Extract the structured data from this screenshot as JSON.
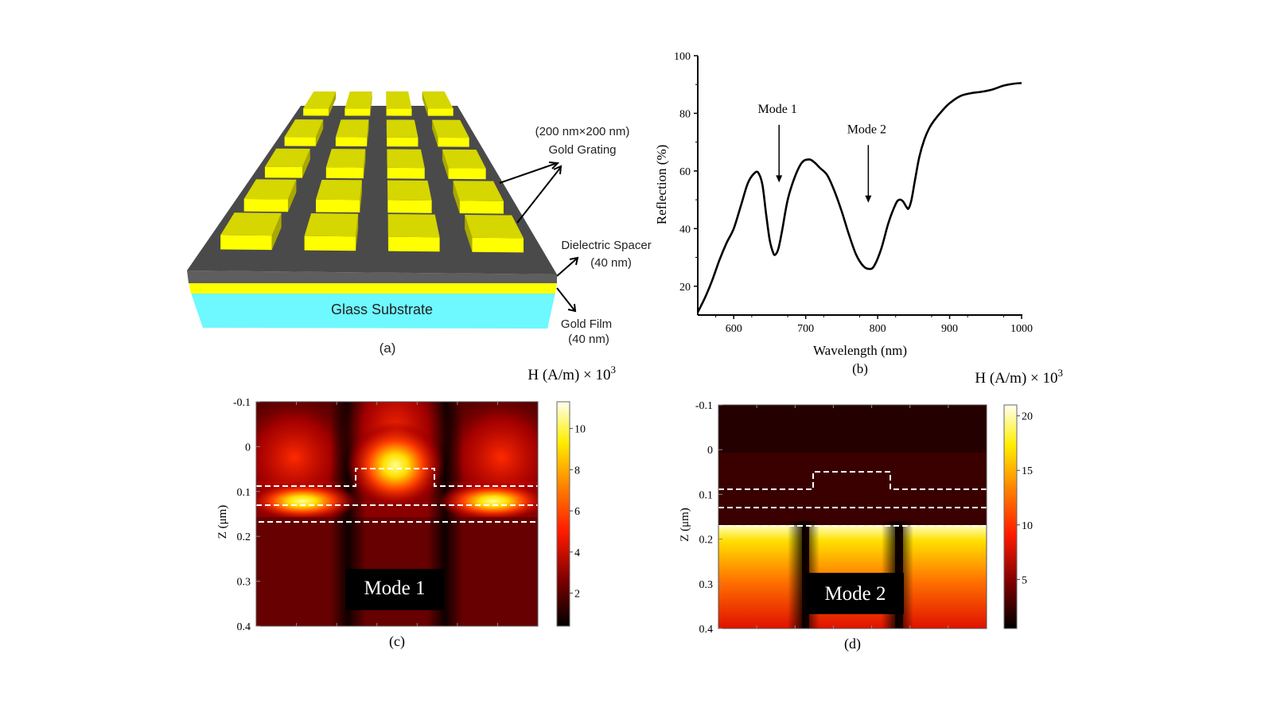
{
  "panel_a": {
    "caption": "(a)",
    "label_grating_size": "(200 nm×200 nm)",
    "label_grating": "Gold Grating",
    "label_spacer": "Dielectric Spacer",
    "label_spacer_thickness": "(40 nm)",
    "label_film": "Gold Film",
    "label_film_thickness": "(40 nm)",
    "label_substrate": "Glass Substrate",
    "colors": {
      "gold_top": "#d6d600",
      "gold_front": "#ffff00",
      "spacer": "#4a4a4a",
      "spacer_edge": "#5e5e5e",
      "glass": "#6ef8ff"
    }
  },
  "chart_data": [
    {
      "panel": "b",
      "type": "line",
      "caption": "(b)",
      "xlabel": "Wavelength (nm)",
      "ylabel": "Reflection (%)",
      "xlim": [
        550,
        1000
      ],
      "ylim": [
        10,
        100
      ],
      "xticks": [
        "600",
        "700",
        "800",
        "900",
        "1000"
      ],
      "yticks": [
        "20",
        "40",
        "60",
        "80",
        "100"
      ],
      "grid": false,
      "series": [
        {
          "x": [
            550,
            560,
            570,
            580,
            590,
            600,
            610,
            620,
            630,
            635,
            640,
            645,
            650,
            655,
            658,
            662,
            667,
            675,
            685,
            695,
            705,
            712,
            720,
            730,
            740,
            750,
            760,
            770,
            780,
            788,
            795,
            805,
            815,
            825,
            830,
            835,
            840,
            843,
            847,
            852,
            858,
            865,
            872,
            880,
            890,
            900,
            915,
            930,
            945,
            960,
            975,
            990,
            1000
          ],
          "y": [
            11,
            16,
            22,
            29,
            35,
            40,
            48,
            56,
            59.5,
            59,
            55,
            45,
            36,
            31.5,
            31,
            33,
            39,
            50,
            58,
            63,
            64,
            63,
            61,
            58.5,
            53,
            46,
            38,
            31,
            27,
            26,
            27,
            33,
            42,
            48.5,
            50,
            49.5,
            47.5,
            47,
            50,
            57,
            65,
            71,
            75,
            78,
            81,
            83.5,
            86,
            87,
            87.5,
            88.3,
            89.6,
            90.3,
            90.5
          ]
        }
      ],
      "annotations": [
        {
          "text": "Mode 1",
          "arrow_x": 663,
          "arrow_from_y": 76,
          "arrow_to_y": 56
        },
        {
          "text": "Mode 2",
          "arrow_x": 787,
          "arrow_from_y": 69,
          "arrow_to_y": 49
        }
      ]
    },
    {
      "panel": "c",
      "type": "heatmap",
      "caption": "(c)",
      "ylabel": "Z (μm)",
      "yticks": [
        "-0.1",
        "0",
        "0.1",
        "0.2",
        "0.3",
        "0.4"
      ],
      "ylim": [
        -0.1,
        0.4
      ],
      "colorbar_title": "H (A/m) × 10",
      "colorbar_exponent": "3",
      "colorbar_ticks": [
        "2",
        "4",
        "6",
        "8",
        "10"
      ],
      "colorbar_range": [
        0.4,
        11.3
      ],
      "inset_label": "Mode 1"
    },
    {
      "panel": "d",
      "type": "heatmap",
      "caption": "(d)",
      "ylabel": "Z (μm)",
      "yticks": [
        "-0.1",
        "0",
        "0.1",
        "0.2",
        "0.3",
        "0.4"
      ],
      "ylim": [
        -0.1,
        0.4
      ],
      "colorbar_title": "H (A/m) × 10",
      "colorbar_exponent": "3",
      "colorbar_ticks": [
        "5",
        "10",
        "15",
        "20"
      ],
      "colorbar_range": [
        0.5,
        21
      ],
      "inset_label": "Mode 2"
    }
  ]
}
